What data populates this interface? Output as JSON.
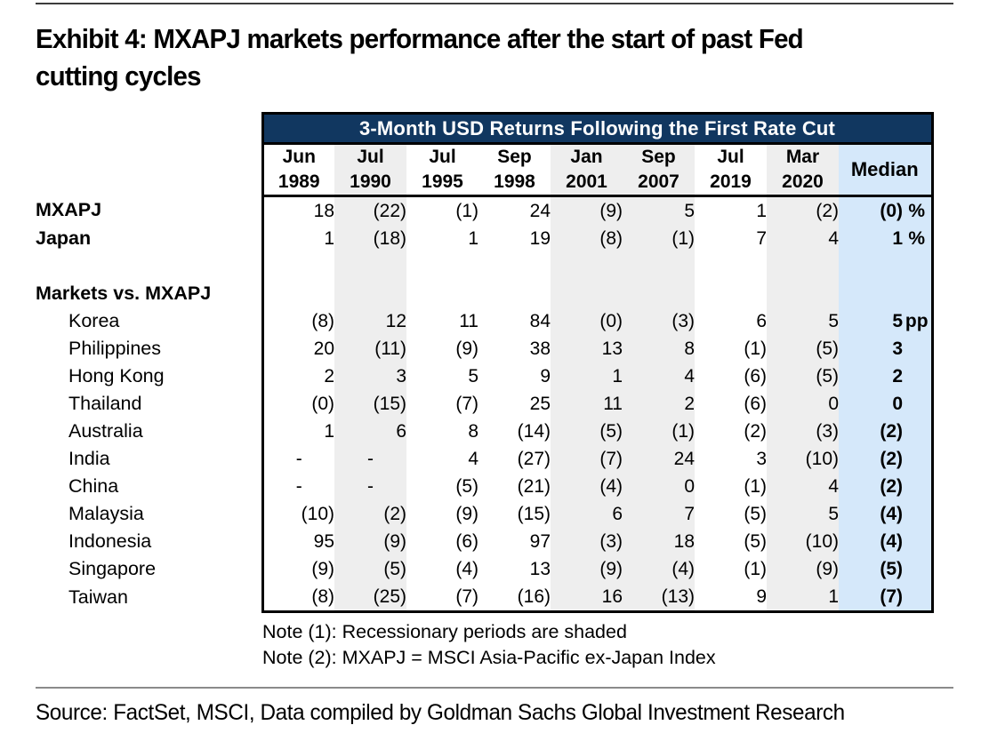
{
  "exhibit_title_lines": [
    "Exhibit 4: MXAPJ markets performance after the start of past Fed",
    "cutting cycles"
  ],
  "chart_data": {
    "type": "table",
    "title": "3-Month USD Returns Following the First Rate Cut",
    "median_label": "Median",
    "columns": [
      {
        "month": "Jun",
        "year": "1989",
        "shaded": false
      },
      {
        "month": "Jul",
        "year": "1990",
        "shaded": true
      },
      {
        "month": "Jul",
        "year": "1995",
        "shaded": false
      },
      {
        "month": "Sep",
        "year": "1998",
        "shaded": false
      },
      {
        "month": "Jan",
        "year": "2001",
        "shaded": true
      },
      {
        "month": "Sep",
        "year": "2007",
        "shaded": true
      },
      {
        "month": "Jul",
        "year": "2019",
        "shaded": false
      },
      {
        "month": "Mar",
        "year": "2020",
        "shaded": true
      }
    ],
    "rows": [
      {
        "label": "MXAPJ",
        "style": "index",
        "values": [
          "18",
          "(22)",
          "(1)",
          "24",
          "(9)",
          "5",
          "1",
          "(2)"
        ],
        "median": "(0)",
        "unit": "%"
      },
      {
        "label": "Japan",
        "style": "index",
        "values": [
          "1",
          "(18)",
          "1",
          "19",
          "(8)",
          "(1)",
          "7",
          "4"
        ],
        "median": "1",
        "unit": "%"
      },
      {
        "label": "",
        "style": "blank",
        "values": [
          "",
          "",
          "",
          "",
          "",
          "",
          "",
          ""
        ],
        "median": "",
        "unit": ""
      },
      {
        "label": "Markets vs. MXAPJ",
        "style": "section",
        "values": [
          "",
          "",
          "",
          "",
          "",
          "",
          "",
          ""
        ],
        "median": "",
        "unit": ""
      },
      {
        "label": "Korea",
        "style": "country",
        "values": [
          "(8)",
          "12",
          "11",
          "84",
          "(0)",
          "(3)",
          "6",
          "5"
        ],
        "median": "5",
        "unit": "pp"
      },
      {
        "label": "Philippines",
        "style": "country",
        "values": [
          "20",
          "(11)",
          "(9)",
          "38",
          "13",
          "8",
          "(1)",
          "(5)"
        ],
        "median": "3",
        "unit": ""
      },
      {
        "label": "Hong Kong",
        "style": "country",
        "values": [
          "2",
          "3",
          "5",
          "9",
          "1",
          "4",
          "(6)",
          "(5)"
        ],
        "median": "2",
        "unit": ""
      },
      {
        "label": "Thailand",
        "style": "country",
        "values": [
          "(0)",
          "(15)",
          "(7)",
          "25",
          "11",
          "2",
          "(6)",
          "0"
        ],
        "median": "0",
        "unit": ""
      },
      {
        "label": "Australia",
        "style": "country",
        "values": [
          "1",
          "6",
          "8",
          "(14)",
          "(5)",
          "(1)",
          "(2)",
          "(3)"
        ],
        "median": "(2)",
        "unit": ""
      },
      {
        "label": "India",
        "style": "country",
        "values": [
          "-",
          "-",
          "4",
          "(27)",
          "(7)",
          "24",
          "3",
          "(10)"
        ],
        "median": "(2)",
        "unit": ""
      },
      {
        "label": "China",
        "style": "country",
        "values": [
          "-",
          "-",
          "(5)",
          "(21)",
          "(4)",
          "0",
          "(1)",
          "4"
        ],
        "median": "(2)",
        "unit": ""
      },
      {
        "label": "Malaysia",
        "style": "country",
        "values": [
          "(10)",
          "(2)",
          "(9)",
          "(15)",
          "6",
          "7",
          "(5)",
          "5"
        ],
        "median": "(4)",
        "unit": ""
      },
      {
        "label": "Indonesia",
        "style": "country",
        "values": [
          "95",
          "(9)",
          "(6)",
          "97",
          "(3)",
          "18",
          "(5)",
          "(10)"
        ],
        "median": "(4)",
        "unit": ""
      },
      {
        "label": "Singapore",
        "style": "country",
        "values": [
          "(9)",
          "(5)",
          "(4)",
          "13",
          "(9)",
          "(4)",
          "(1)",
          "(9)"
        ],
        "median": "(5)",
        "unit": ""
      },
      {
        "label": "Taiwan",
        "style": "country",
        "values": [
          "(8)",
          "(25)",
          "(7)",
          "(16)",
          "16",
          "(13)",
          "9",
          "1"
        ],
        "median": "(7)",
        "unit": ""
      }
    ],
    "shaded_recession_columns": [
      "Jul 1990",
      "Jan 2001",
      "Sep 2007",
      "Mar 2020"
    ]
  },
  "notes": [
    "Note (1): Recessionary periods are shaded",
    "Note (2): MXAPJ = MSCI Asia-Pacific ex-Japan Index"
  ],
  "source": "Source: FactSet, MSCI, Data compiled by Goldman Sachs Global Investment Research",
  "colors": {
    "header_navy": "#113760",
    "recession_shade": "#EEEEEE",
    "median_blue": "#D5E8FA",
    "border_black": "#000000"
  }
}
